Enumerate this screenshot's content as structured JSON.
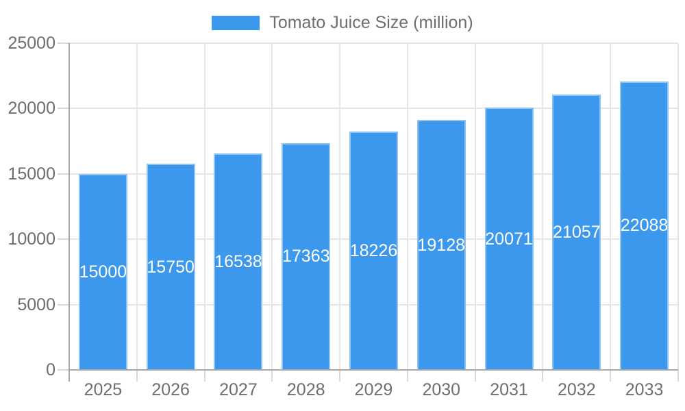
{
  "legend": {
    "label": "Tomato Juice Size (million)",
    "position": "top"
  },
  "colors": {
    "bar": "#3b98ec",
    "bar_border": "#8fc3f2",
    "grid": "#e6e6e6",
    "axis": "#a8a8a8",
    "tick": "#d9d9d9",
    "axis_text": "#6e6e6e",
    "value_text": "#ffffff",
    "background": "#ffffff"
  },
  "chart_data": {
    "type": "bar",
    "title": "Tomato Juice Size (million)",
    "categories": [
      "2025",
      "2026",
      "2027",
      "2028",
      "2029",
      "2030",
      "2031",
      "2032",
      "2033"
    ],
    "series": [
      {
        "name": "Tomato Juice Size (million)",
        "values": [
          15000,
          15750,
          16538,
          17363,
          18226,
          19128,
          20071,
          21057,
          22088
        ]
      }
    ],
    "value_labels": [
      "15000",
      "15750",
      "16538",
      "17363",
      "18226",
      "19128",
      "20071",
      "21057",
      "22088"
    ],
    "value_label_position": "inside-center",
    "xlabel": "",
    "ylabel": "",
    "ylim": [
      0,
      25000
    ],
    "yticks": [
      0,
      5000,
      10000,
      15000,
      20000,
      25000
    ],
    "ytick_labels": [
      "0",
      "5000",
      "10000",
      "15000",
      "20000",
      "25000"
    ],
    "grid": true,
    "legend_position": "top"
  }
}
